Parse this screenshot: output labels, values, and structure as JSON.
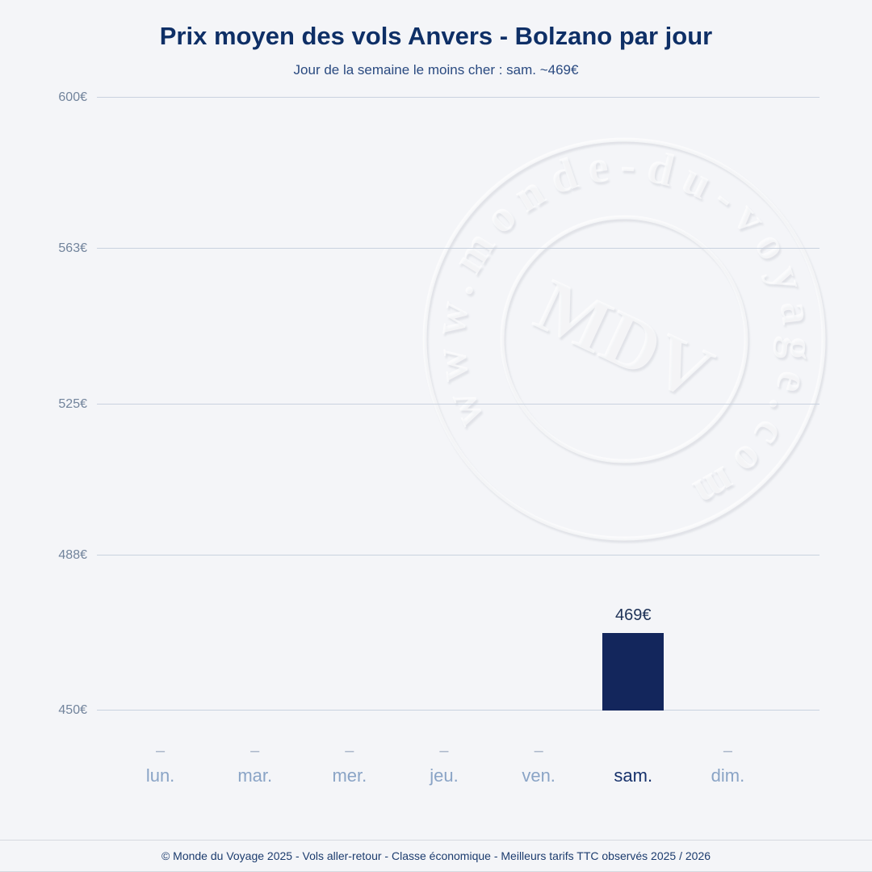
{
  "header": {
    "title": "Prix moyen des vols Anvers - Bolzano par jour",
    "subtitle": "Jour de la semaine le moins cher : sam. ~469€"
  },
  "chart_data": {
    "type": "bar",
    "title": "Prix moyen des vols Anvers - Bolzano par jour",
    "categories": [
      "lun.",
      "mar.",
      "mer.",
      "jeu.",
      "ven.",
      "sam.",
      "dim."
    ],
    "values": [
      null,
      null,
      null,
      null,
      null,
      469,
      null
    ],
    "value_suffix": "€",
    "highlight_category": "sam.",
    "ylabel": "",
    "xlabel": "",
    "ylim": [
      450,
      600
    ],
    "yticks": [
      450,
      488,
      525,
      563,
      600
    ],
    "ytick_labels": [
      "450€",
      "488€",
      "525€",
      "563€",
      "600€"
    ],
    "grid": true,
    "legend": "none",
    "no_data_marker": "–",
    "bar_color": "#13265c"
  },
  "watermark": {
    "ring_text": "www.monde-du-voyage.com",
    "center_text": "MDV"
  },
  "footer": {
    "text": "© Monde du Voyage 2025 - Vols aller-retour - Classe économique - Meilleurs tarifs TTC observés 2025 / 2026"
  },
  "colors": {
    "background": "#f4f5f8",
    "title": "#0e2f66",
    "subtitle": "#2a4a80",
    "gridline": "#c9d2df",
    "ytick": "#72849c",
    "bar": "#13265c",
    "bar_label": "#1d3156",
    "day_label": "#8aa4c6",
    "day_label_highlight": "#16316b",
    "no_data_marker": "#a4b1c6",
    "footer_text": "#1c3c6e"
  }
}
